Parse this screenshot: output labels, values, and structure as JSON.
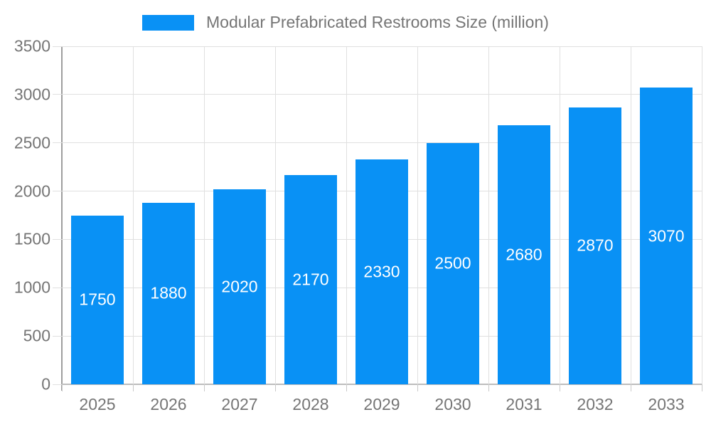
{
  "chart_data": {
    "type": "bar",
    "title": "Modular Prefabricated Restrooms Size (million)",
    "categories": [
      "2025",
      "2026",
      "2027",
      "2028",
      "2029",
      "2030",
      "2031",
      "2032",
      "2033"
    ],
    "values": [
      1750,
      1880,
      2020,
      2170,
      2330,
      2500,
      2680,
      2870,
      3070
    ],
    "xlabel": "",
    "ylabel": "",
    "ylim": [
      0,
      3500
    ],
    "yticks": [
      0,
      500,
      1000,
      1500,
      2000,
      2500,
      3000,
      3500
    ],
    "legend_position": "top",
    "grid": true,
    "value_labels": "inside-center-white",
    "colors": {
      "bar": "#0991f5",
      "value_label": "#ffffff",
      "axis_text": "#757575",
      "grid_line": "#e0e0e0",
      "y_axis_line": "#9e9e9e",
      "x_axis_line": "#bdbdbd"
    }
  }
}
